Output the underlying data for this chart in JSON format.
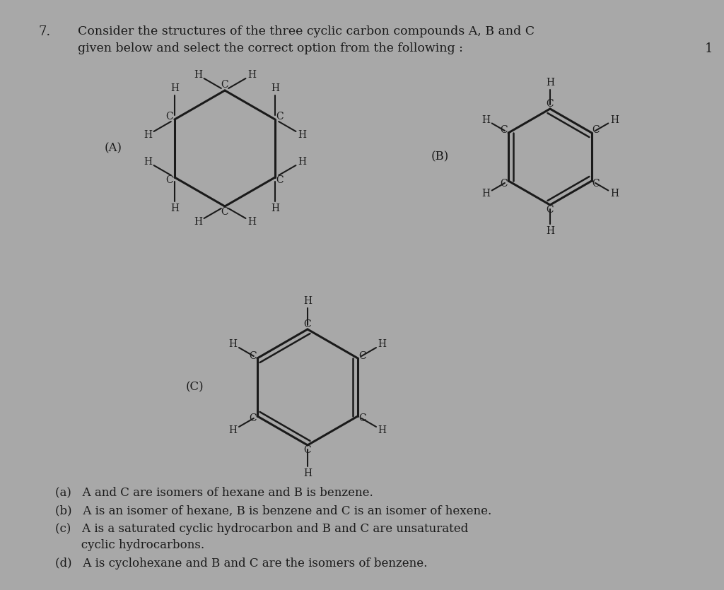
{
  "bg_color": "#a8a8a8",
  "text_color": "#1a1a1a",
  "bond_color": "#1a1a1a",
  "question_num": "7.",
  "marks": "1",
  "title_line1": "Consider the structures of the three cyclic carbon compounds A, B and C",
  "title_line2": "given below and select the correct option from the following :",
  "label_A": "(A)",
  "label_B": "(B)",
  "label_C": "(C)",
  "options_a": "(a)   A and C are isomers of hexane and B is benzene.",
  "options_b": "(b)   A is an isomer of hexane, B is benzene and C is an isomer of hexene.",
  "options_c1": "(c)   A is a saturated cyclic hydrocarbon and B and C are unsaturated",
  "options_c2": "       cyclic hydrocarbons.",
  "options_d": "(d)   A is cyclohexane and B and C are the isomers of benzene."
}
